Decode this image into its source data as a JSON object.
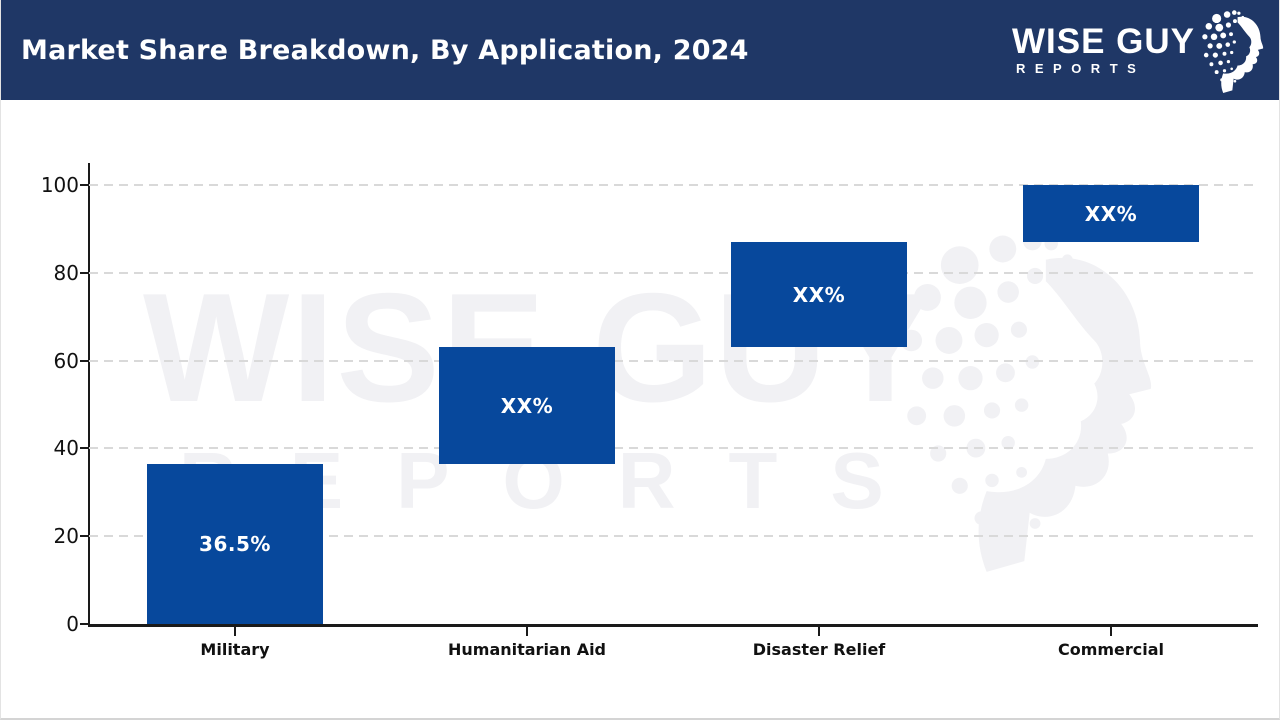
{
  "header": {
    "title": "Market Share Breakdown, By Application, 2024",
    "bg_color": "#1f3766",
    "logo": {
      "line1": "WISE GUY",
      "line2": "REPORTS"
    }
  },
  "watermark": {
    "line1": "WISE GUY",
    "line2": "REPORTS"
  },
  "chart_data": {
    "type": "bar",
    "subtype": "floating-segment-waterfall",
    "title": "Market Share Breakdown, By Application, 2024",
    "categories": [
      "Military",
      "Humanitarian Aid",
      "Disaster Relief",
      "Commercial"
    ],
    "segments": [
      {
        "category": "Military",
        "start": 0,
        "end": 36.5,
        "label": "36.5%"
      },
      {
        "category": "Humanitarian Aid",
        "start": 36.5,
        "end": 63,
        "label": "XX%"
      },
      {
        "category": "Disaster Relief",
        "start": 63,
        "end": 87,
        "label": "XX%"
      },
      {
        "category": "Commercial",
        "start": 87,
        "end": 100,
        "label": "XX%"
      }
    ],
    "xlabel": "",
    "ylabel": "",
    "ylim": [
      0,
      100
    ],
    "y_ticks": [
      0,
      20,
      40,
      60,
      80,
      100
    ],
    "grid": "horizontal-dashed",
    "legend": "none",
    "bar_color": "#07489c",
    "bar_label_color": "#ffffff",
    "axis_color": "#1a1a1a",
    "grid_color": "#d9d9d9"
  }
}
